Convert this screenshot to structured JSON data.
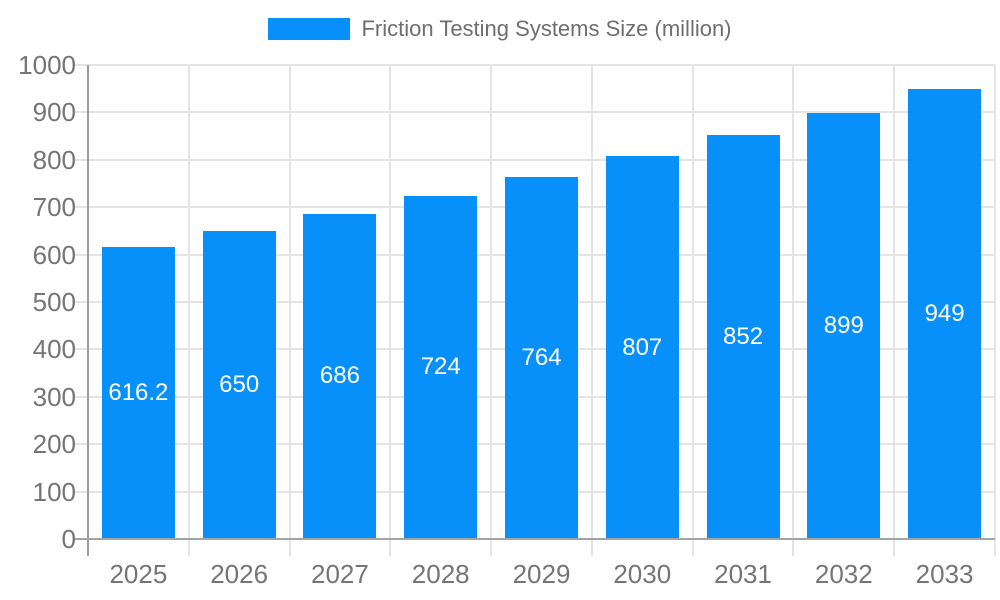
{
  "legend": {
    "label": "Friction Testing Systems Size (million)"
  },
  "colors": {
    "bar": "#0890fa",
    "grid": "#e4e4e4",
    "axis": "#a3a3a3",
    "tick_text": "#757575",
    "legend_text": "#6e6e6e",
    "bar_value_text": "#ffffff"
  },
  "chart_data": {
    "type": "bar",
    "title": "Friction Testing Systems Size (million)",
    "categories": [
      "2025",
      "2026",
      "2027",
      "2028",
      "2029",
      "2030",
      "2031",
      "2032",
      "2033"
    ],
    "values": [
      616.2,
      650,
      686,
      724,
      764,
      807,
      852,
      899,
      949
    ],
    "value_labels": [
      "616.2",
      "650",
      "686",
      "724",
      "764",
      "807",
      "852",
      "899",
      "949"
    ],
    "xlabel": "",
    "ylabel": "",
    "ylim": [
      0,
      1000
    ],
    "ytick_step": 100,
    "ytick_labels": [
      "0",
      "100",
      "200",
      "300",
      "400",
      "500",
      "600",
      "700",
      "800",
      "900",
      "1000"
    ],
    "grid": "on",
    "legend_position": "top",
    "bar_color": "#0890fa",
    "value_label_color": "#ffffff",
    "value_label_position": "center-of-bar"
  }
}
